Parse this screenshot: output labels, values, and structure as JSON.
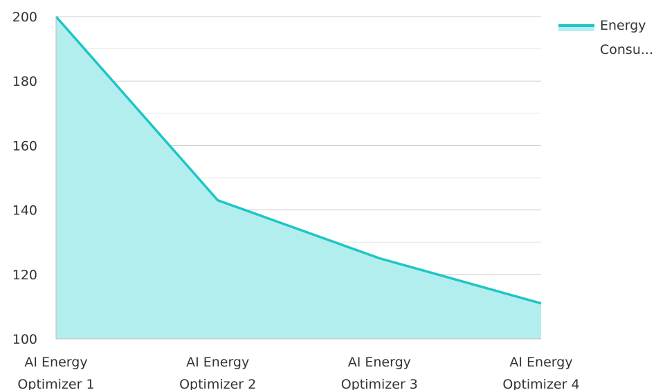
{
  "chart_data": {
    "type": "area",
    "title": "",
    "xlabel": "",
    "ylabel": "",
    "categories": [
      [
        "AI Energy",
        "Optimizer 1"
      ],
      [
        "AI Energy",
        "Optimizer 2"
      ],
      [
        "AI Energy",
        "Optimizer 3"
      ],
      [
        "AI Energy",
        "Optimizer 4"
      ]
    ],
    "series": [
      {
        "name": "Energy Consu...",
        "legend_lines": [
          "Energy",
          "Consu..."
        ],
        "values": [
          200,
          143,
          125,
          111
        ]
      }
    ],
    "ylim": [
      100,
      200
    ],
    "yticks": [
      100,
      120,
      140,
      160,
      180,
      200
    ],
    "grid": true,
    "legend_position": "top-right",
    "colors": {
      "line": "#1dc6c6",
      "fill": "#b3eeee",
      "grid": "#cccccc",
      "minor_grid": "#e6e6e6",
      "axis": "#bdbdbd"
    }
  }
}
